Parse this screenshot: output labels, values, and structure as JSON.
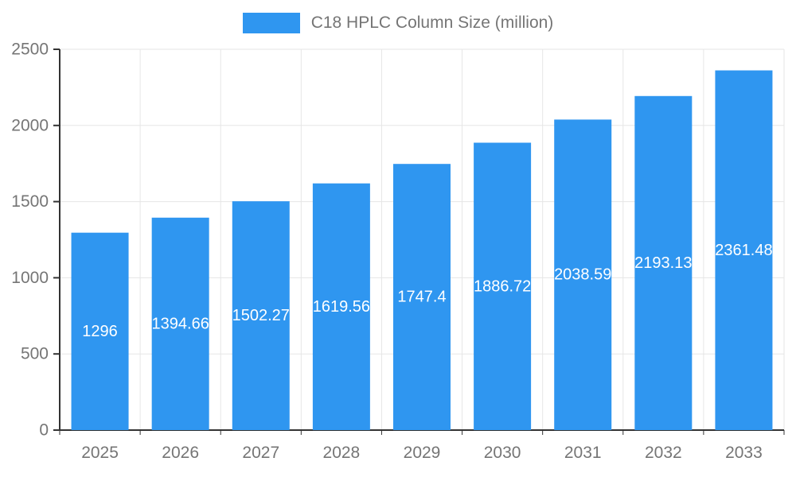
{
  "colors": {
    "bar": "#2f96f0",
    "grid": "#e6e6e6",
    "axis_line": "#333333",
    "axis_text": "#757575",
    "bar_label_text": "#ffffff"
  },
  "chart_data": {
    "type": "bar",
    "title": "C18 HPLC Column Size (million)",
    "categories": [
      "2025",
      "2026",
      "2027",
      "2028",
      "2029",
      "2030",
      "2031",
      "2032",
      "2033"
    ],
    "values": [
      1296,
      1394.66,
      1502.27,
      1619.56,
      1747.4,
      1886.72,
      2038.59,
      2193.13,
      2361.48
    ],
    "bar_labels": [
      "1296",
      "1394.66",
      "1502.27",
      "1619.56",
      "1747.4",
      "1886.72",
      "2038.59",
      "2193.13",
      "2361.48"
    ],
    "xlabel": "",
    "ylabel": "",
    "ylim": [
      0,
      2500
    ],
    "yticks": [
      0,
      500,
      1000,
      1500,
      2000,
      2500
    ],
    "ytick_labels": [
      "0",
      "500",
      "1000",
      "1500",
      "2000",
      "2500"
    ],
    "grid": true,
    "legend_position": "top"
  }
}
